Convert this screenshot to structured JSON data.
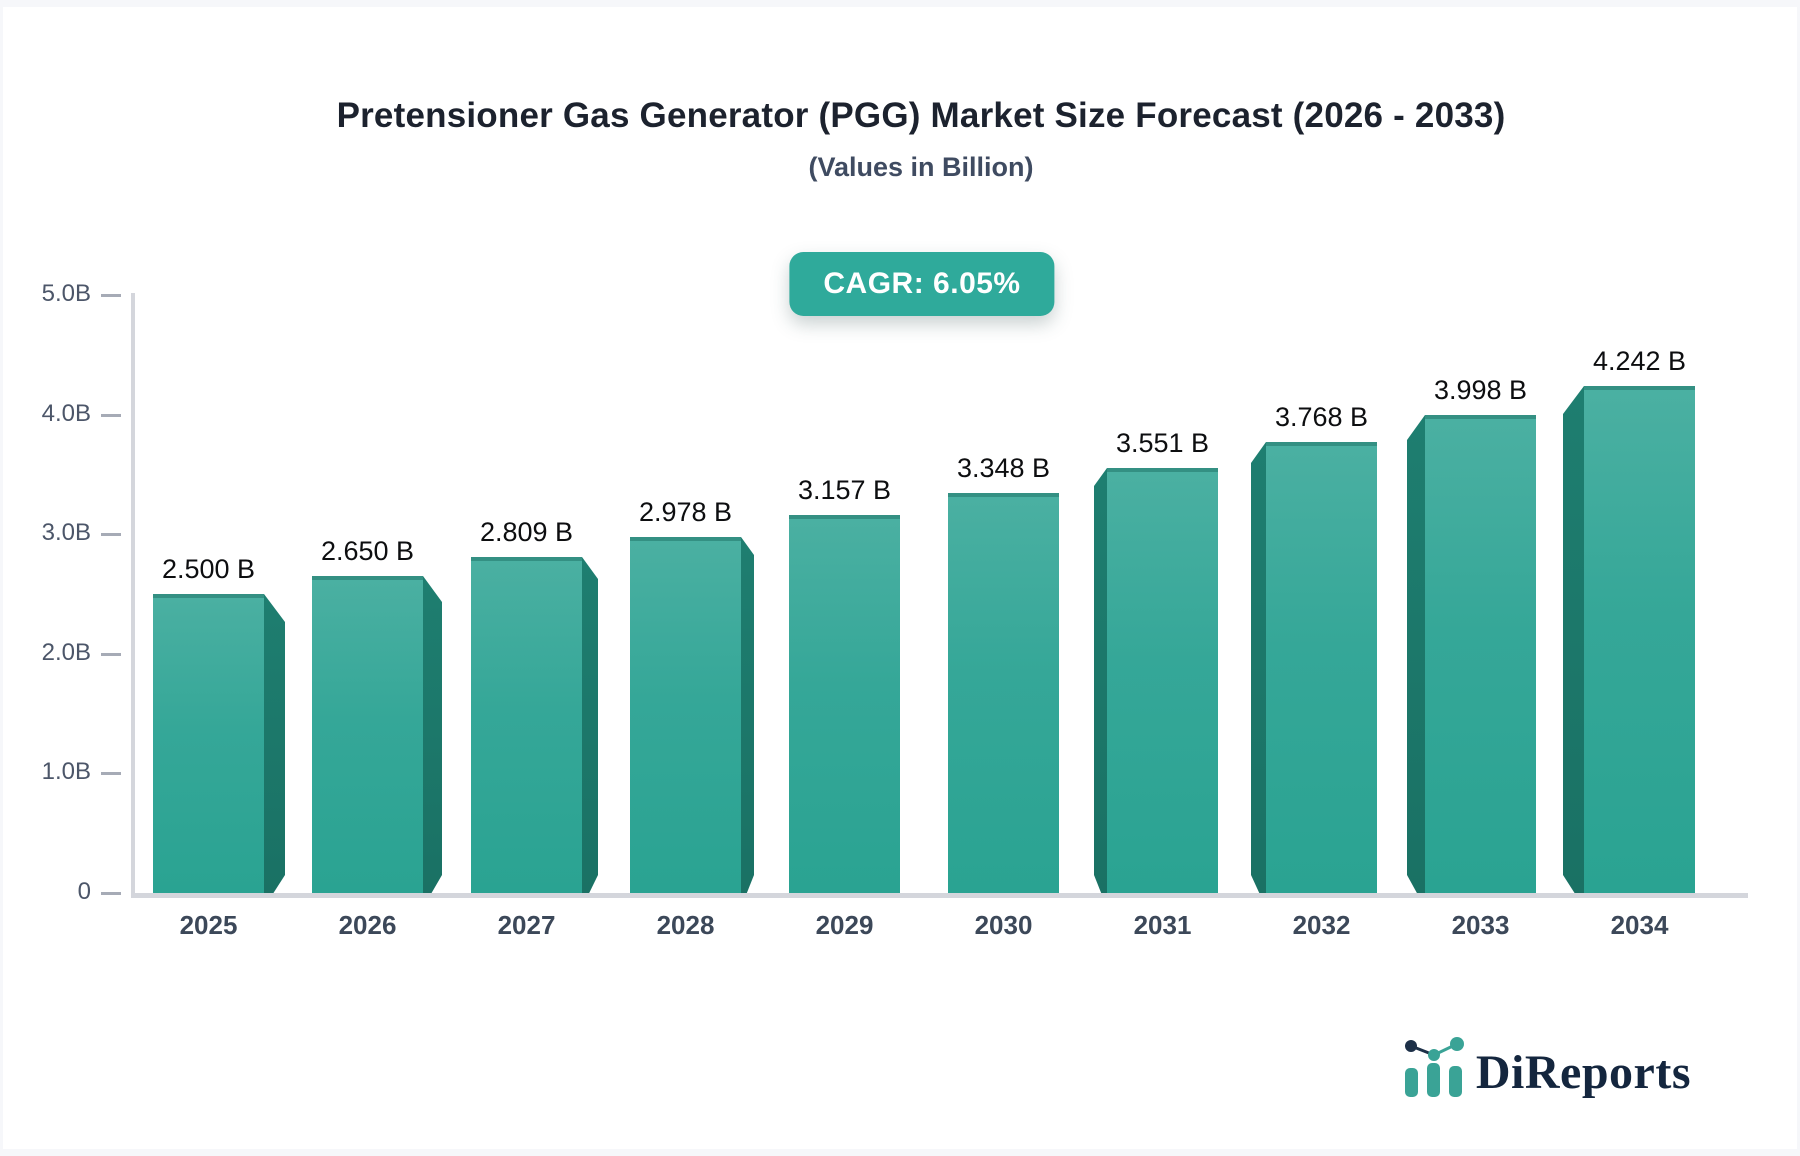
{
  "header": {
    "title": "Pretensioner Gas Generator (PGG) Market Size Forecast (2026 - 2033)",
    "subtitle": "(Values in Billion)",
    "cagr_label": "CAGR: 6.05%"
  },
  "chart_data": {
    "type": "bar",
    "title": "Pretensioner Gas Generator (PGG) Market Size Forecast (2026 - 2033)",
    "subtitle": "(Values in Billion)",
    "annotation": "CAGR: 6.05%",
    "categories": [
      "2025",
      "2026",
      "2027",
      "2028",
      "2029",
      "2030",
      "2031",
      "2032",
      "2033",
      "2034"
    ],
    "values": [
      2.5,
      2.65,
      2.809,
      2.978,
      3.157,
      3.348,
      3.551,
      3.768,
      3.998,
      4.242
    ],
    "bar_labels": [
      "2.500 B",
      "2.650 B",
      "2.809 B",
      "2.978 B",
      "3.157 B",
      "3.348 B",
      "3.551 B",
      "3.768 B",
      "3.998 B",
      "4.242 B"
    ],
    "ytick_labels": [
      "5.0B",
      "4.0B",
      "3.0B",
      "2.0B",
      "1.0B",
      "0"
    ],
    "ytick_values": [
      5,
      4,
      3,
      2,
      1,
      0
    ],
    "ylim": [
      0,
      5
    ],
    "xlabel": "",
    "ylabel": "",
    "grid": false,
    "legend": false,
    "style": "3d-perspective-bars",
    "colors": {
      "bar_face_top": "#4bb0a2",
      "bar_face_bottom": "#2aa392",
      "bar_side_dark": "#1e7e70",
      "bar_side_darker": "#1a7164",
      "axis": "#d4d6dc",
      "tick": "#a6abb6",
      "badge_background": "#2faa9b",
      "badge_text": "#ffffff",
      "title_text": "#1c222e",
      "logo_teal": "#3aa396",
      "logo_navy": "#14263e"
    }
  },
  "footer": {
    "logo_text": "DiReports"
  }
}
